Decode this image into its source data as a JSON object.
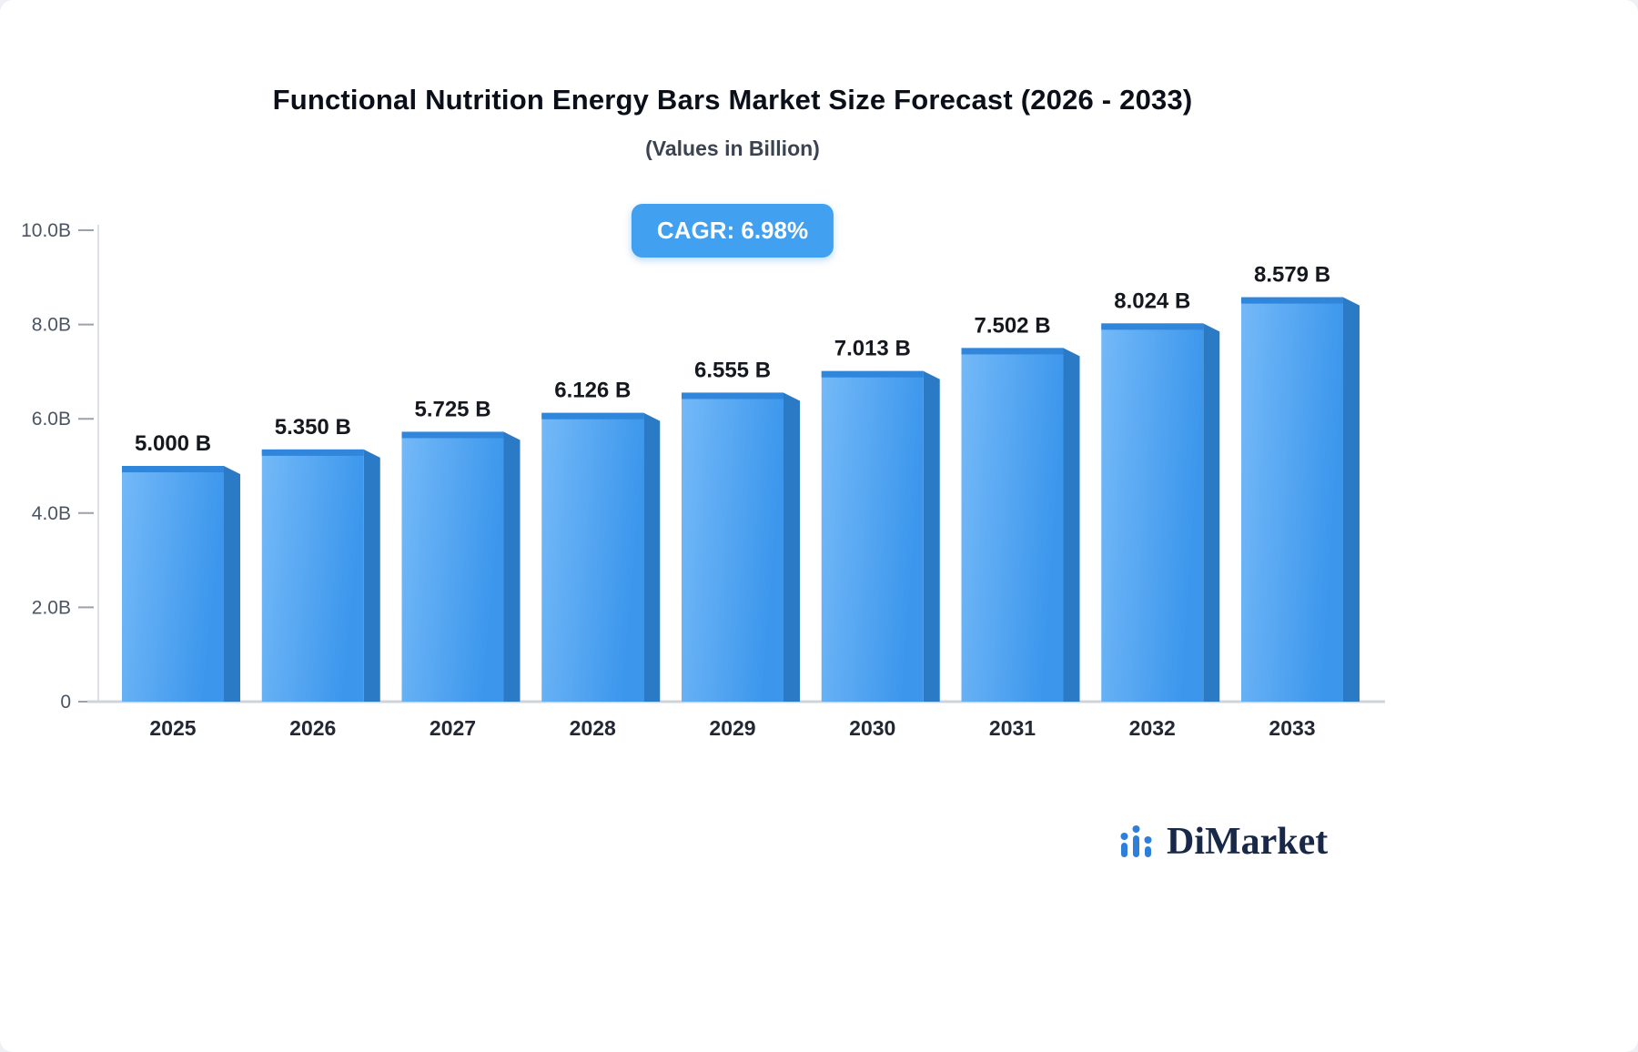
{
  "title": "Functional Nutrition Energy Bars Market Size Forecast (2026 - 2033)",
  "subtitle": "(Values in Billion)",
  "badge": {
    "label": "CAGR: 6.98%",
    "background": "#41a0ef"
  },
  "brand": {
    "name": "DiMarket",
    "icon": "bar-chart-logo-icon",
    "icon_color": "#2e7fd9",
    "text_color": "#182848"
  },
  "chart_data": {
    "type": "bar",
    "title": "Functional Nutrition Energy Bars Market Size Forecast (2026 - 2033)",
    "subtitle": "(Values in Billion)",
    "categories": [
      "2025",
      "2026",
      "2027",
      "2028",
      "2029",
      "2030",
      "2031",
      "2032",
      "2033"
    ],
    "values": [
      5.0,
      5.35,
      5.725,
      6.126,
      6.555,
      7.013,
      7.502,
      8.024,
      8.579
    ],
    "value_labels": [
      "5.000 B",
      "5.350 B",
      "5.725 B",
      "6.126 B",
      "6.555 B",
      "7.013 B",
      "7.502 B",
      "8.024 B",
      "8.579 B"
    ],
    "xlabel": "",
    "ylabel": "",
    "ylim": [
      0,
      10
    ],
    "yticks": [
      0,
      2,
      4,
      6,
      8,
      10
    ],
    "ytick_labels": [
      "0",
      "2.0B",
      "4.0B",
      "6.0B",
      "8.0B",
      "10.0B"
    ],
    "grid": false,
    "legend": "none",
    "bar_colors": {
      "front_start": "#74b9f8",
      "front_end": "#3b96ec",
      "side": "#2a7ac6",
      "top": "#2f86da"
    },
    "axis_color": "#cfd4db",
    "tick_color": "#9aa1ab",
    "tick_label_color": "#4b5563",
    "x_label_color": "#222733",
    "value_label_color": "#15181e"
  }
}
